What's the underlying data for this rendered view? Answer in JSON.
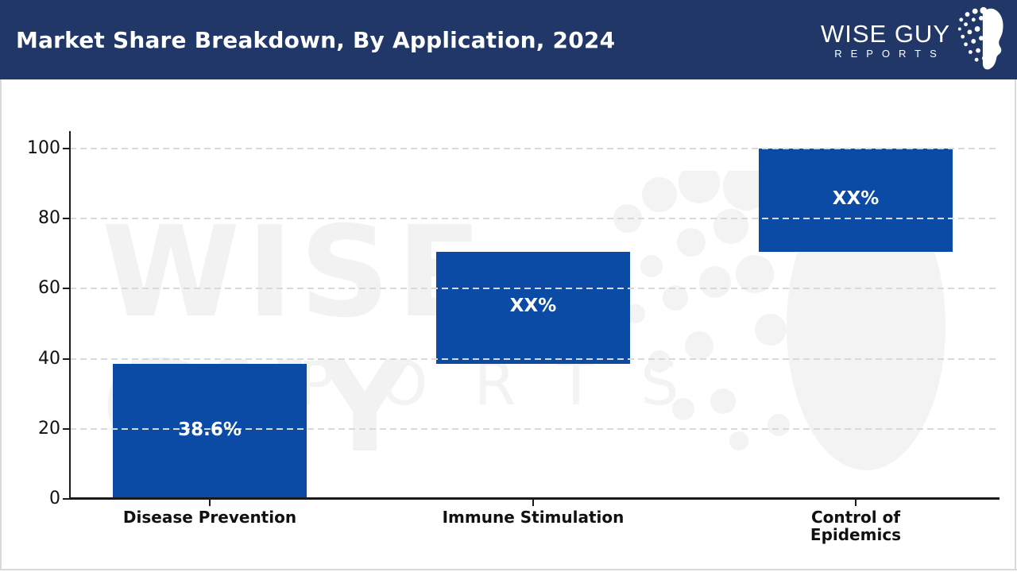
{
  "header": {
    "title": "Market Share Breakdown, By Application, 2024",
    "bg_color": "#203767",
    "logo": {
      "wordmark": "WISE GUY",
      "subtext": "REPORTS"
    }
  },
  "watermark": {
    "line1": "WISE GUY",
    "line2": "REPORTS"
  },
  "chart_data": {
    "type": "bar",
    "subtype": "waterfall",
    "title": "Market Share Breakdown, By Application, 2024",
    "categories": [
      "Disease Prevention",
      "Immune Stimulation",
      "Control of\nEpidemics"
    ],
    "segments": [
      {
        "category": "Disease Prevention",
        "from": 0,
        "to": 38.6,
        "label": "38.6%"
      },
      {
        "category": "Immune Stimulation",
        "from": 38.6,
        "to": 70.5,
        "label": "XX%"
      },
      {
        "category": "Control of Epidemics",
        "from": 70.5,
        "to": 100,
        "label": "XX%"
      }
    ],
    "yticks": [
      0,
      20,
      40,
      60,
      80,
      100
    ],
    "ylim": [
      0,
      105
    ],
    "xlabel": "",
    "ylabel": "",
    "legend": false,
    "grid": "dashed-horizontal",
    "bar_color": "#0b4aa5",
    "label_color": "#ffffff",
    "axis_color": "#1a1a1a",
    "gridline_color": "#d9d9d9"
  }
}
